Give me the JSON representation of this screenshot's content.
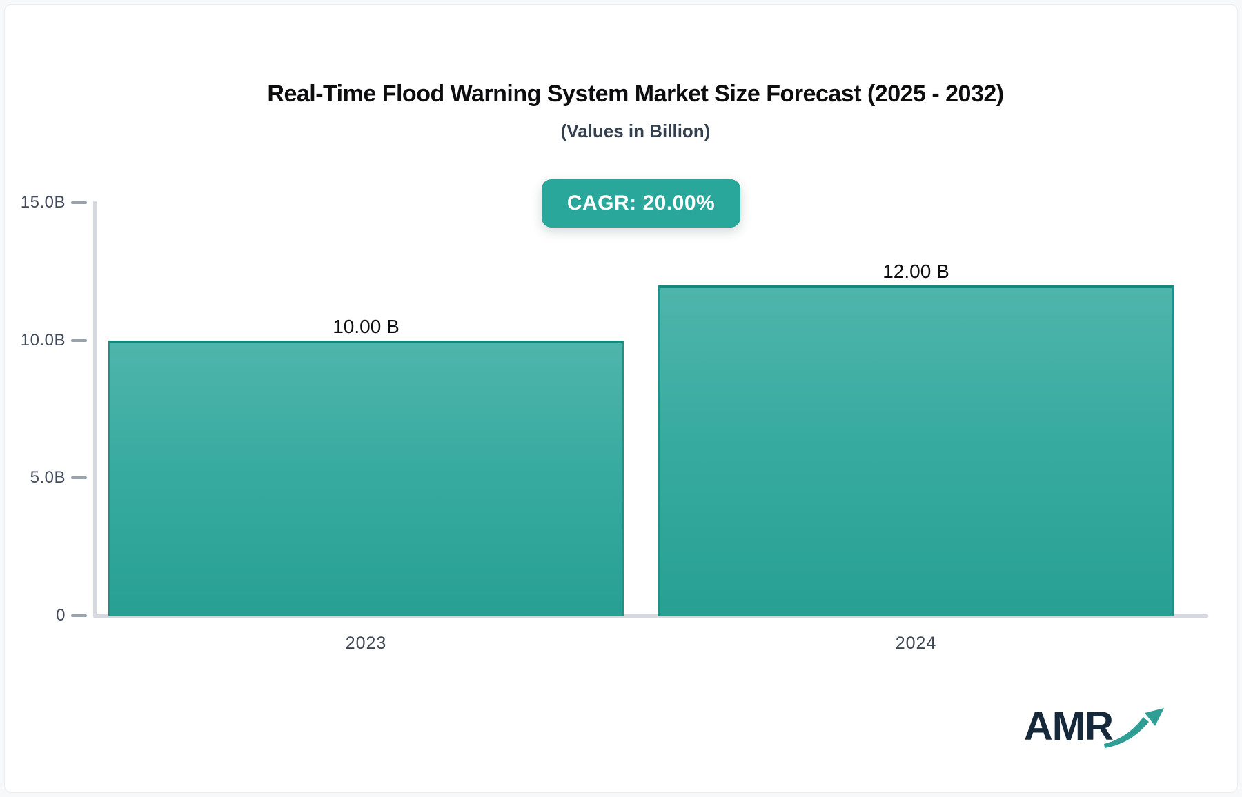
{
  "page": {
    "title": "Real-Time Flood Warning System Market Size Forecast (2025 - 2032)",
    "subtitle": "(Values in Billion)",
    "cagr_badge": "CAGR: 20.00%",
    "logo_text": "AMR"
  },
  "colors": {
    "accent_teal": "#2aa79b",
    "bar_gradient_top": "#4fb5ab",
    "bar_gradient_bottom": "#27a093",
    "bar_border": "#1e9288",
    "axis_line": "#d5d8df",
    "tick_dash": "#9aa2ae",
    "axis_label_text": "#414b5c",
    "title_text": "#0d0d0f",
    "subtitle_text": "#35404f",
    "logo_navy": "#16293a",
    "background": "#ffffff"
  },
  "chart_data": {
    "type": "bar",
    "title": "Real-Time Flood Warning System Market Size Forecast (2025 - 2032)",
    "subtitle": "(Values in Billion)",
    "cagr_label": "CAGR: 20.00%",
    "categories": [
      "2023",
      "2024"
    ],
    "values": [
      10.0,
      12.0
    ],
    "value_labels": [
      "10.00 B",
      "12.00 B"
    ],
    "unit": "Billion",
    "xlabel": "",
    "ylabel": "",
    "ylim": [
      0,
      15
    ],
    "yticks": [
      "15.0B",
      "10.0B",
      "5.0B",
      "0"
    ],
    "ytick_values": [
      15,
      10,
      5,
      0
    ],
    "grid": false,
    "legend": false
  }
}
